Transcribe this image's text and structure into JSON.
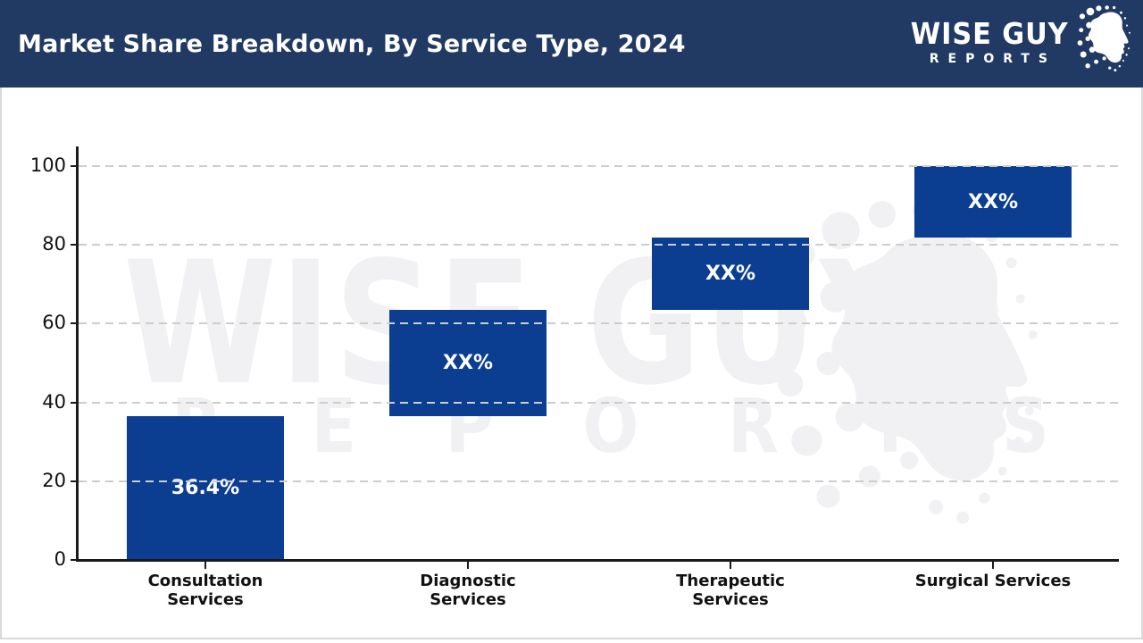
{
  "header": {
    "title": "Market Share Breakdown, By Service Type, 2024",
    "background_color": "#213a64",
    "logo": {
      "line1": "WISE GUY",
      "line2": "REPORTS"
    }
  },
  "watermark": {
    "line1": "WISE GUY",
    "line2": "R E P O R T S"
  },
  "chart_data": {
    "type": "bar",
    "subtype": "waterfall",
    "title": "Market Share Breakdown, By Service Type, 2024",
    "categories": [
      "Consultation\nServices",
      "Diagnostic\nServices",
      "Therapeutic\nServices",
      "Surgical Services"
    ],
    "segments": [
      {
        "start": 0,
        "end": 36.4,
        "label": "36.4%"
      },
      {
        "start": 36.4,
        "end": 63.6,
        "label": "XX%"
      },
      {
        "start": 63.6,
        "end": 81.8,
        "label": "XX%"
      },
      {
        "start": 81.8,
        "end": 100,
        "label": "XX%"
      }
    ],
    "values": [
      36.4,
      27.2,
      18.2,
      18.2
    ],
    "displayed_labels": [
      "36.4%",
      "XX%",
      "XX%",
      "XX%"
    ],
    "xlabel": "",
    "ylabel": "",
    "ylim": [
      0,
      100
    ],
    "yticks": [
      0,
      20,
      40,
      60,
      80,
      100
    ],
    "grid": "horizontal dashed",
    "legend": "none",
    "bar_color": "#0b3d91",
    "bar_label_color": "#ffffff",
    "gridline_color": "#cdcdcd",
    "axis_color": "#1a1a1a",
    "watermark_color": "#f1f1f3"
  }
}
